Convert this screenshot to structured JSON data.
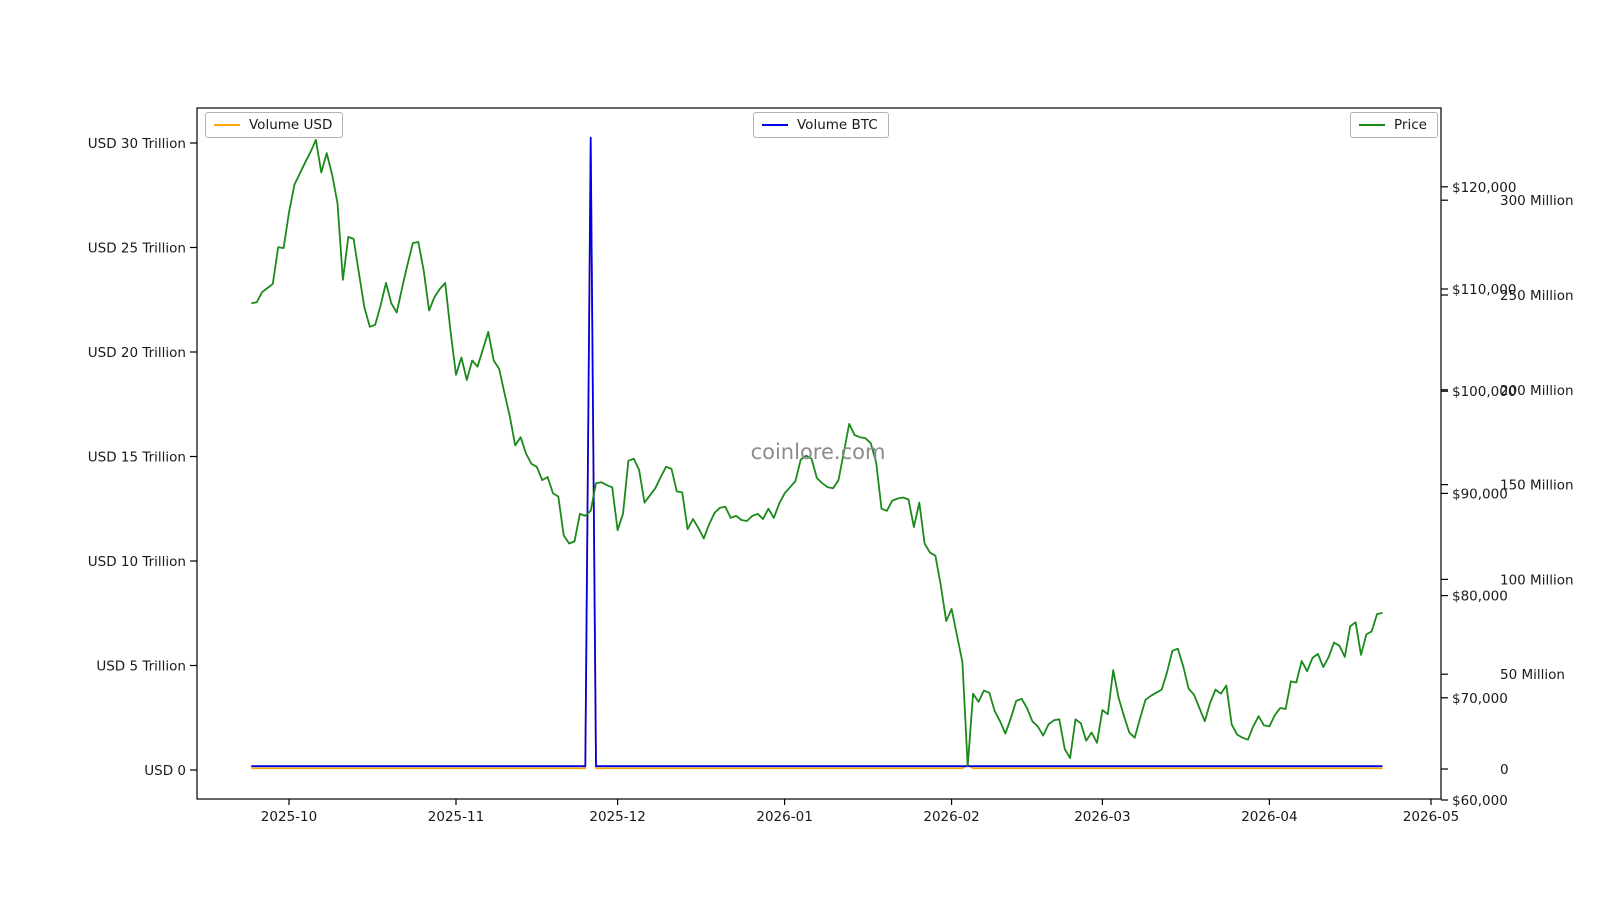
{
  "watermark": "coinlore.com",
  "colors": {
    "volume_usd": "#FFA500",
    "volume_btc": "#0000E6",
    "price": "#1b8a1b",
    "axis": "#000000",
    "tick_label": "#1a1a1a",
    "watermark": "#8c8c8c",
    "legend_border": "#b3b3b3"
  },
  "legends": [
    {
      "label": "Volume USD",
      "color_key": "volume_usd",
      "position": "upper left"
    },
    {
      "label": "Volume BTC",
      "color_key": "volume_btc",
      "position": "upper center"
    },
    {
      "label": "Price",
      "color_key": "price",
      "position": "upper right"
    }
  ],
  "chart_data": {
    "type": "line",
    "title": "",
    "grid": false,
    "x_axis": {
      "tick_labels": [
        "2025-10",
        "2025-11",
        "2025-12",
        "2026-01",
        "2026-02",
        "2026-03",
        "2026-04",
        "2026-05"
      ],
      "start_date": "2025-09-24",
      "end_date": "2026-04-22"
    },
    "y_axis_left_volume_usd": {
      "tick_labels": [
        "USD 0",
        "USD 5 Trillion",
        "USD 10 Trillion",
        "USD 15 Trillion",
        "USD 20 Trillion",
        "USD 25 Trillion",
        "USD 30 Trillion"
      ],
      "tick_values_trillions": [
        0,
        5,
        10,
        15,
        20,
        25,
        30
      ],
      "axis_range_trillions": [
        -2.1,
        31.7
      ]
    },
    "y_axis_right_price": {
      "tick_labels": [
        "$60,000",
        "$70,000",
        "$80,000",
        "$90,000",
        "$100,000",
        "$110,000",
        "$120,000"
      ],
      "tick_values_usd": [
        60000,
        70000,
        80000,
        90000,
        100000,
        110000,
        120000
      ],
      "axis_range_usd": [
        60100,
        127800
      ]
    },
    "y_axis_right_volume_btc": {
      "tick_labels": [
        "0",
        "50 Million",
        "100 Million",
        "150 Million",
        "200 Million",
        "250 Million",
        "300 Million"
      ],
      "tick_values_millions": [
        0,
        50,
        100,
        150,
        200,
        250,
        300
      ],
      "axis_range_millions": [
        -16,
        349
      ]
    },
    "series": [
      {
        "name": "Volume USD",
        "axis": "volume_usd_trillions",
        "color_key": "volume_usd",
        "start_date": "2025-09-24",
        "interval_days": 1,
        "num_points": 211,
        "baseline_trillions": 0.08,
        "spikes": [
          {
            "date": "2025-11-26",
            "value_trillions": 30.0
          },
          {
            "date": "2026-02-04",
            "value_trillions": 0.25
          }
        ]
      },
      {
        "name": "Volume BTC",
        "axis": "volume_btc_millions",
        "color_key": "volume_btc",
        "start_date": "2025-09-24",
        "interval_days": 1,
        "num_points": 211,
        "baseline_millions": 1.5,
        "spikes": [
          {
            "date": "2025-11-26",
            "value_millions": 333
          }
        ]
      },
      {
        "name": "Price",
        "axis": "price_usd",
        "color_key": "price",
        "start_date": "2025-09-24",
        "interval_days": 1,
        "values_usd": [
          108600,
          108700,
          109700,
          110100,
          110500,
          114100,
          114000,
          117500,
          120200,
          121300,
          122400,
          123400,
          124600,
          121400,
          123300,
          121200,
          118400,
          110900,
          115100,
          114900,
          111500,
          108200,
          106300,
          106500,
          108400,
          110600,
          108600,
          107700,
          110100,
          112400,
          114500,
          114600,
          111800,
          107900,
          109200,
          110000,
          110600,
          105800,
          101600,
          103300,
          101100,
          103000,
          102400,
          104100,
          105800,
          103000,
          102200,
          99800,
          97500,
          94700,
          95500,
          93900,
          92900,
          92600,
          91300,
          91600,
          90000,
          89700,
          85900,
          85100,
          85300,
          88000,
          87800,
          88300,
          91000,
          91100,
          90800,
          90600,
          86400,
          88000,
          93200,
          93400,
          92300,
          89100,
          89800,
          90500,
          91600,
          92600,
          92400,
          90200,
          90100,
          86500,
          87500,
          86600,
          85600,
          87000,
          88100,
          88600,
          88700,
          87600,
          87800,
          87400,
          87300,
          87800,
          88000,
          87500,
          88500,
          87600,
          89000,
          90000,
          90600,
          91200,
          93300,
          93700,
          93400,
          91500,
          91000,
          90600,
          90500,
          91300,
          94000,
          96800,
          95700,
          95500,
          95400,
          94900,
          93000,
          88500,
          88300,
          89300,
          89500,
          89600,
          89400,
          86700,
          89100,
          85100,
          84200,
          83900,
          81000,
          77500,
          78700,
          76100,
          73500,
          63300,
          70400,
          69600,
          70700,
          70500,
          68700,
          67700,
          66500,
          68000,
          69700,
          69900,
          69000,
          67700,
          67200,
          66300,
          67400,
          67800,
          67900,
          65000,
          64100,
          67900,
          67500,
          65800,
          66600,
          65600,
          68800,
          68400,
          72700,
          70000,
          68200,
          66600,
          66100,
          68000,
          69800,
          70200,
          70500,
          70800,
          72500,
          74600,
          74800,
          73100,
          70900,
          70300,
          69000,
          67700,
          69500,
          70800,
          70400,
          71200,
          67400,
          66400,
          66100,
          65900,
          67200,
          68200,
          67300,
          67200,
          68300,
          69000,
          68900,
          71600,
          71500,
          73600,
          72600,
          73900,
          74300,
          73000,
          74000,
          75400,
          75100,
          74000,
          77000,
          77400,
          74200,
          76200,
          76500,
          78200,
          78300
        ]
      }
    ]
  }
}
